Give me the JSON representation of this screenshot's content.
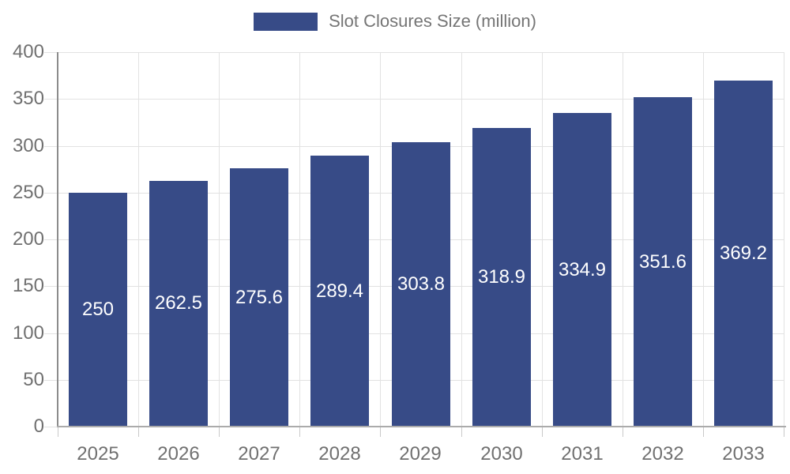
{
  "chart_data": {
    "type": "bar",
    "title": "",
    "legend": "Slot Closures Size (million)",
    "legend_position": "top",
    "categories": [
      "2025",
      "2026",
      "2027",
      "2028",
      "2029",
      "2030",
      "2031",
      "2032",
      "2033"
    ],
    "values": [
      250,
      262.5,
      275.6,
      289.4,
      303.8,
      318.9,
      334.9,
      351.6,
      369.2
    ],
    "xlabel": "",
    "ylabel": "",
    "ylim": [
      0,
      400
    ],
    "ytick_step": 50,
    "yticks": [
      0,
      50,
      100,
      150,
      200,
      250,
      300,
      350,
      400
    ],
    "grid": true,
    "value_labels": "inside-middle",
    "colors": {
      "bar": "#374b87",
      "grid": "#e2e2e2",
      "axis_y": "#8c8c8c",
      "axis_x": "#ababab",
      "tick": "#c9c9c9",
      "label_text": "#707070",
      "legend_text": "#757575",
      "value_text": "#ffffff",
      "background": "#ffffff"
    }
  }
}
